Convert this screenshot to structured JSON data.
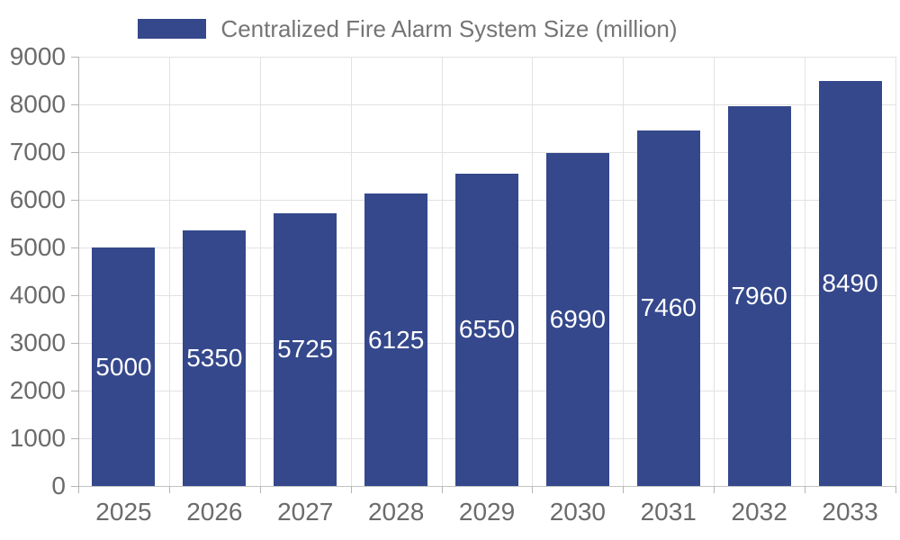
{
  "legend": {
    "label": "Centralized Fire Alarm System Size (million)"
  },
  "chart_data": {
    "type": "bar",
    "title": "Centralized Fire Alarm System Size (million)",
    "xlabel": "",
    "ylabel": "",
    "categories": [
      "2025",
      "2026",
      "2027",
      "2028",
      "2029",
      "2030",
      "2031",
      "2032",
      "2033"
    ],
    "values": [
      5000,
      5350,
      5725,
      6125,
      6550,
      6990,
      7460,
      7960,
      8490
    ],
    "ylim": [
      0,
      9000
    ],
    "y_tick_step": 1000,
    "grid": true,
    "legend_position": "top-center",
    "value_label_position": "inside-center",
    "colors": {
      "bar": "#35488c",
      "grid": "#e2e2e2",
      "baseline": "#c4c4c4",
      "axis": "#b4b4b4",
      "axis_label": "#6b6b6b",
      "legend_text": "#757575",
      "value_label": "#ffffff",
      "background": "#ffffff"
    }
  }
}
